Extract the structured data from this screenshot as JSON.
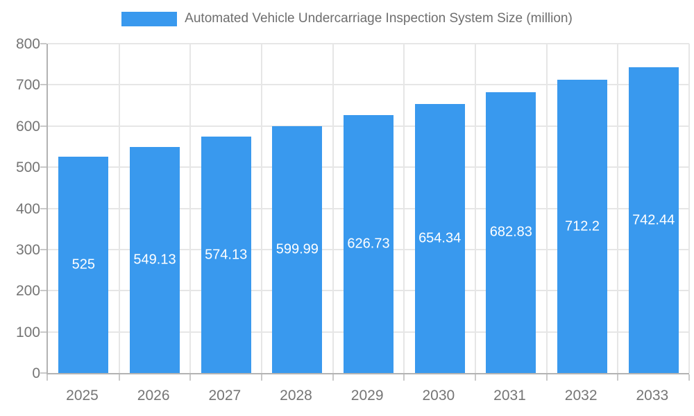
{
  "legend": {
    "label": "Automated Vehicle Undercarriage Inspection System Size (million)"
  },
  "chart_data": {
    "type": "bar",
    "title": "Automated Vehicle Undercarriage Inspection System Size (million)",
    "categories": [
      "2025",
      "2026",
      "2027",
      "2028",
      "2029",
      "2030",
      "2031",
      "2032",
      "2033"
    ],
    "values": [
      525,
      549.13,
      574.13,
      599.99,
      626.73,
      654.34,
      682.83,
      712.2,
      742.44
    ],
    "bar_labels": [
      "525",
      "549.13",
      "574.13",
      "599.99",
      "626.73",
      "654.34",
      "682.83",
      "712.2",
      "742.44"
    ],
    "xlabel": "",
    "ylabel": "",
    "ylim": [
      0,
      800
    ],
    "yticks": [
      0,
      100,
      200,
      300,
      400,
      500,
      600,
      700,
      800
    ],
    "grid": true,
    "legend_position": "top",
    "colors": {
      "bar": "#3999ee",
      "grid": "#e6e6e6",
      "axis": "#b3b3b3",
      "tick_mark": "#c9c9c9",
      "tick_text": "#757575",
      "legend_text": "#6e6e6e",
      "bar_label_text": "#ffffff"
    }
  }
}
